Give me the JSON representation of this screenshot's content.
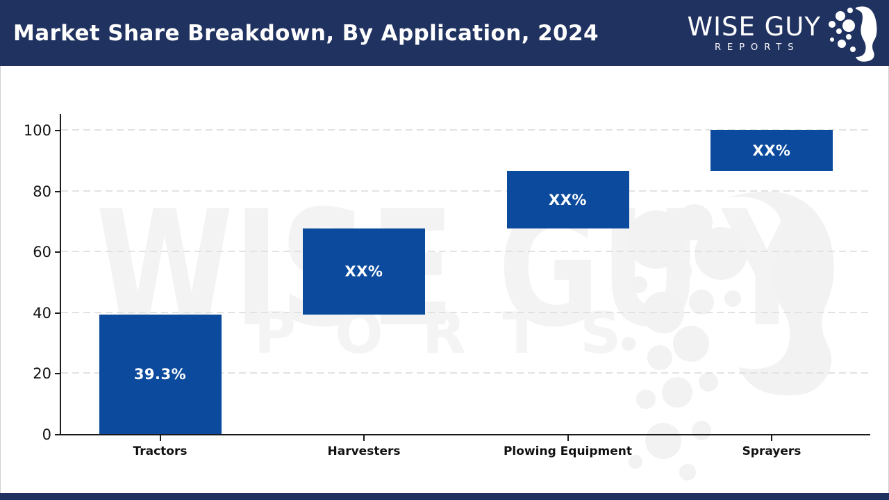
{
  "header": {
    "title": "Market Share Breakdown, By Application, 2024",
    "logo": {
      "line1": "WISE GUY",
      "line2": "REPORTS"
    }
  },
  "watermark": {
    "line1": "WISE GU",
    "line1_suffix": "Y",
    "line2": "PORTS"
  },
  "colors": {
    "header_bg": "#203260",
    "footer_bg": "#203260",
    "bar": "#0b4a9c",
    "grid": "#e2e2e2",
    "axis": "#1a1a1a",
    "bar_label_text": "#ffffff",
    "watermark": "#f3f3f3"
  },
  "chart_data": {
    "type": "bar",
    "subtype": "waterfall",
    "title": "Market Share Breakdown, By Application, 2024",
    "categories": [
      "Tractors",
      "Harvesters",
      "Plowing Equipment",
      "Sprayers"
    ],
    "bars": [
      {
        "category": "Tractors",
        "start": 0,
        "end": 39.3,
        "label": "39.3%"
      },
      {
        "category": "Harvesters",
        "start": 39.3,
        "end": 67.6,
        "label": "XX%"
      },
      {
        "category": "Plowing Equipment",
        "start": 67.6,
        "end": 86.5,
        "label": "XX%"
      },
      {
        "category": "Sprayers",
        "start": 86.5,
        "end": 100,
        "label": "XX%"
      }
    ],
    "yticks": [
      0,
      20,
      40,
      60,
      80,
      100
    ],
    "ylim": [
      0,
      105
    ],
    "xlabel": "",
    "ylabel": "",
    "grid": "horizontal-dashed",
    "legend": "none"
  }
}
